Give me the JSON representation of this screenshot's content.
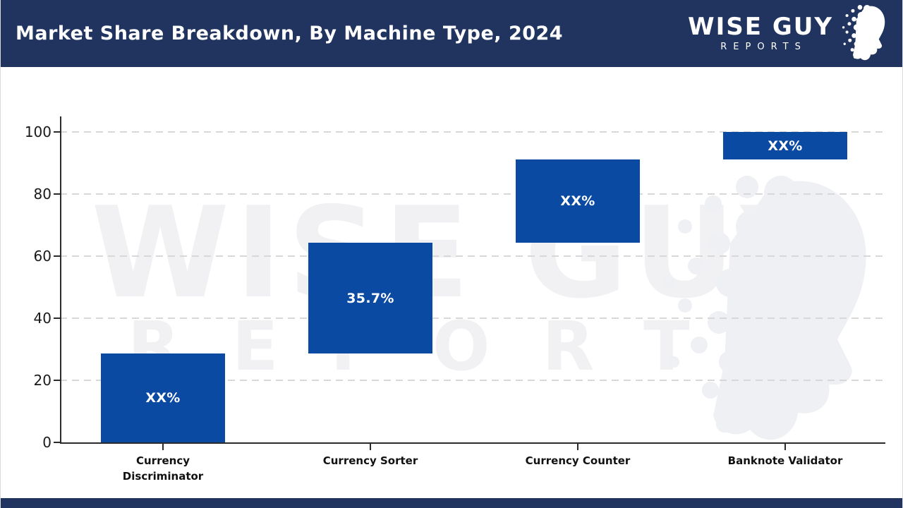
{
  "header": {
    "title": "Market Share Breakdown, By Machine Type, 2024",
    "logo": {
      "line1": "WISE GUY",
      "line2": "REPORTS"
    }
  },
  "watermark": {
    "line1": "WISE GUY",
    "line2": "REPORTS"
  },
  "chart_data": {
    "type": "bar",
    "subtype": "waterfall",
    "title": "Market Share Breakdown, By Machine Type, 2024",
    "categories": [
      "Currency Discriminator",
      "Currency Sorter",
      "Currency Counter",
      "Banknote Validator"
    ],
    "segments": [
      {
        "category": "Currency Discriminator",
        "start": 0,
        "end": 28.6,
        "value": 28.6,
        "value_label": "XX%"
      },
      {
        "category": "Currency Sorter",
        "start": 28.6,
        "end": 64.3,
        "value": 35.7,
        "value_label": "35.7%"
      },
      {
        "category": "Currency Counter",
        "start": 64.3,
        "end": 91.1,
        "value": 26.8,
        "value_label": "XX%"
      },
      {
        "category": "Banknote Validator",
        "start": 91.1,
        "end": 100,
        "value": 8.9,
        "value_label": "XX%"
      }
    ],
    "yticks": [
      0,
      20,
      40,
      60,
      80,
      100
    ],
    "ylim": [
      0,
      105
    ],
    "xlabel": "",
    "ylabel": "",
    "grid": "horizontal-dashed",
    "legend": "none",
    "colors": {
      "bar": "#0B4AA2",
      "bar_label": "#FFFFFF",
      "header_bg": "#21345F",
      "gridline": "#D8D8D8",
      "axis": "#2B2B2B",
      "watermark": "#F1F1F4"
    }
  }
}
